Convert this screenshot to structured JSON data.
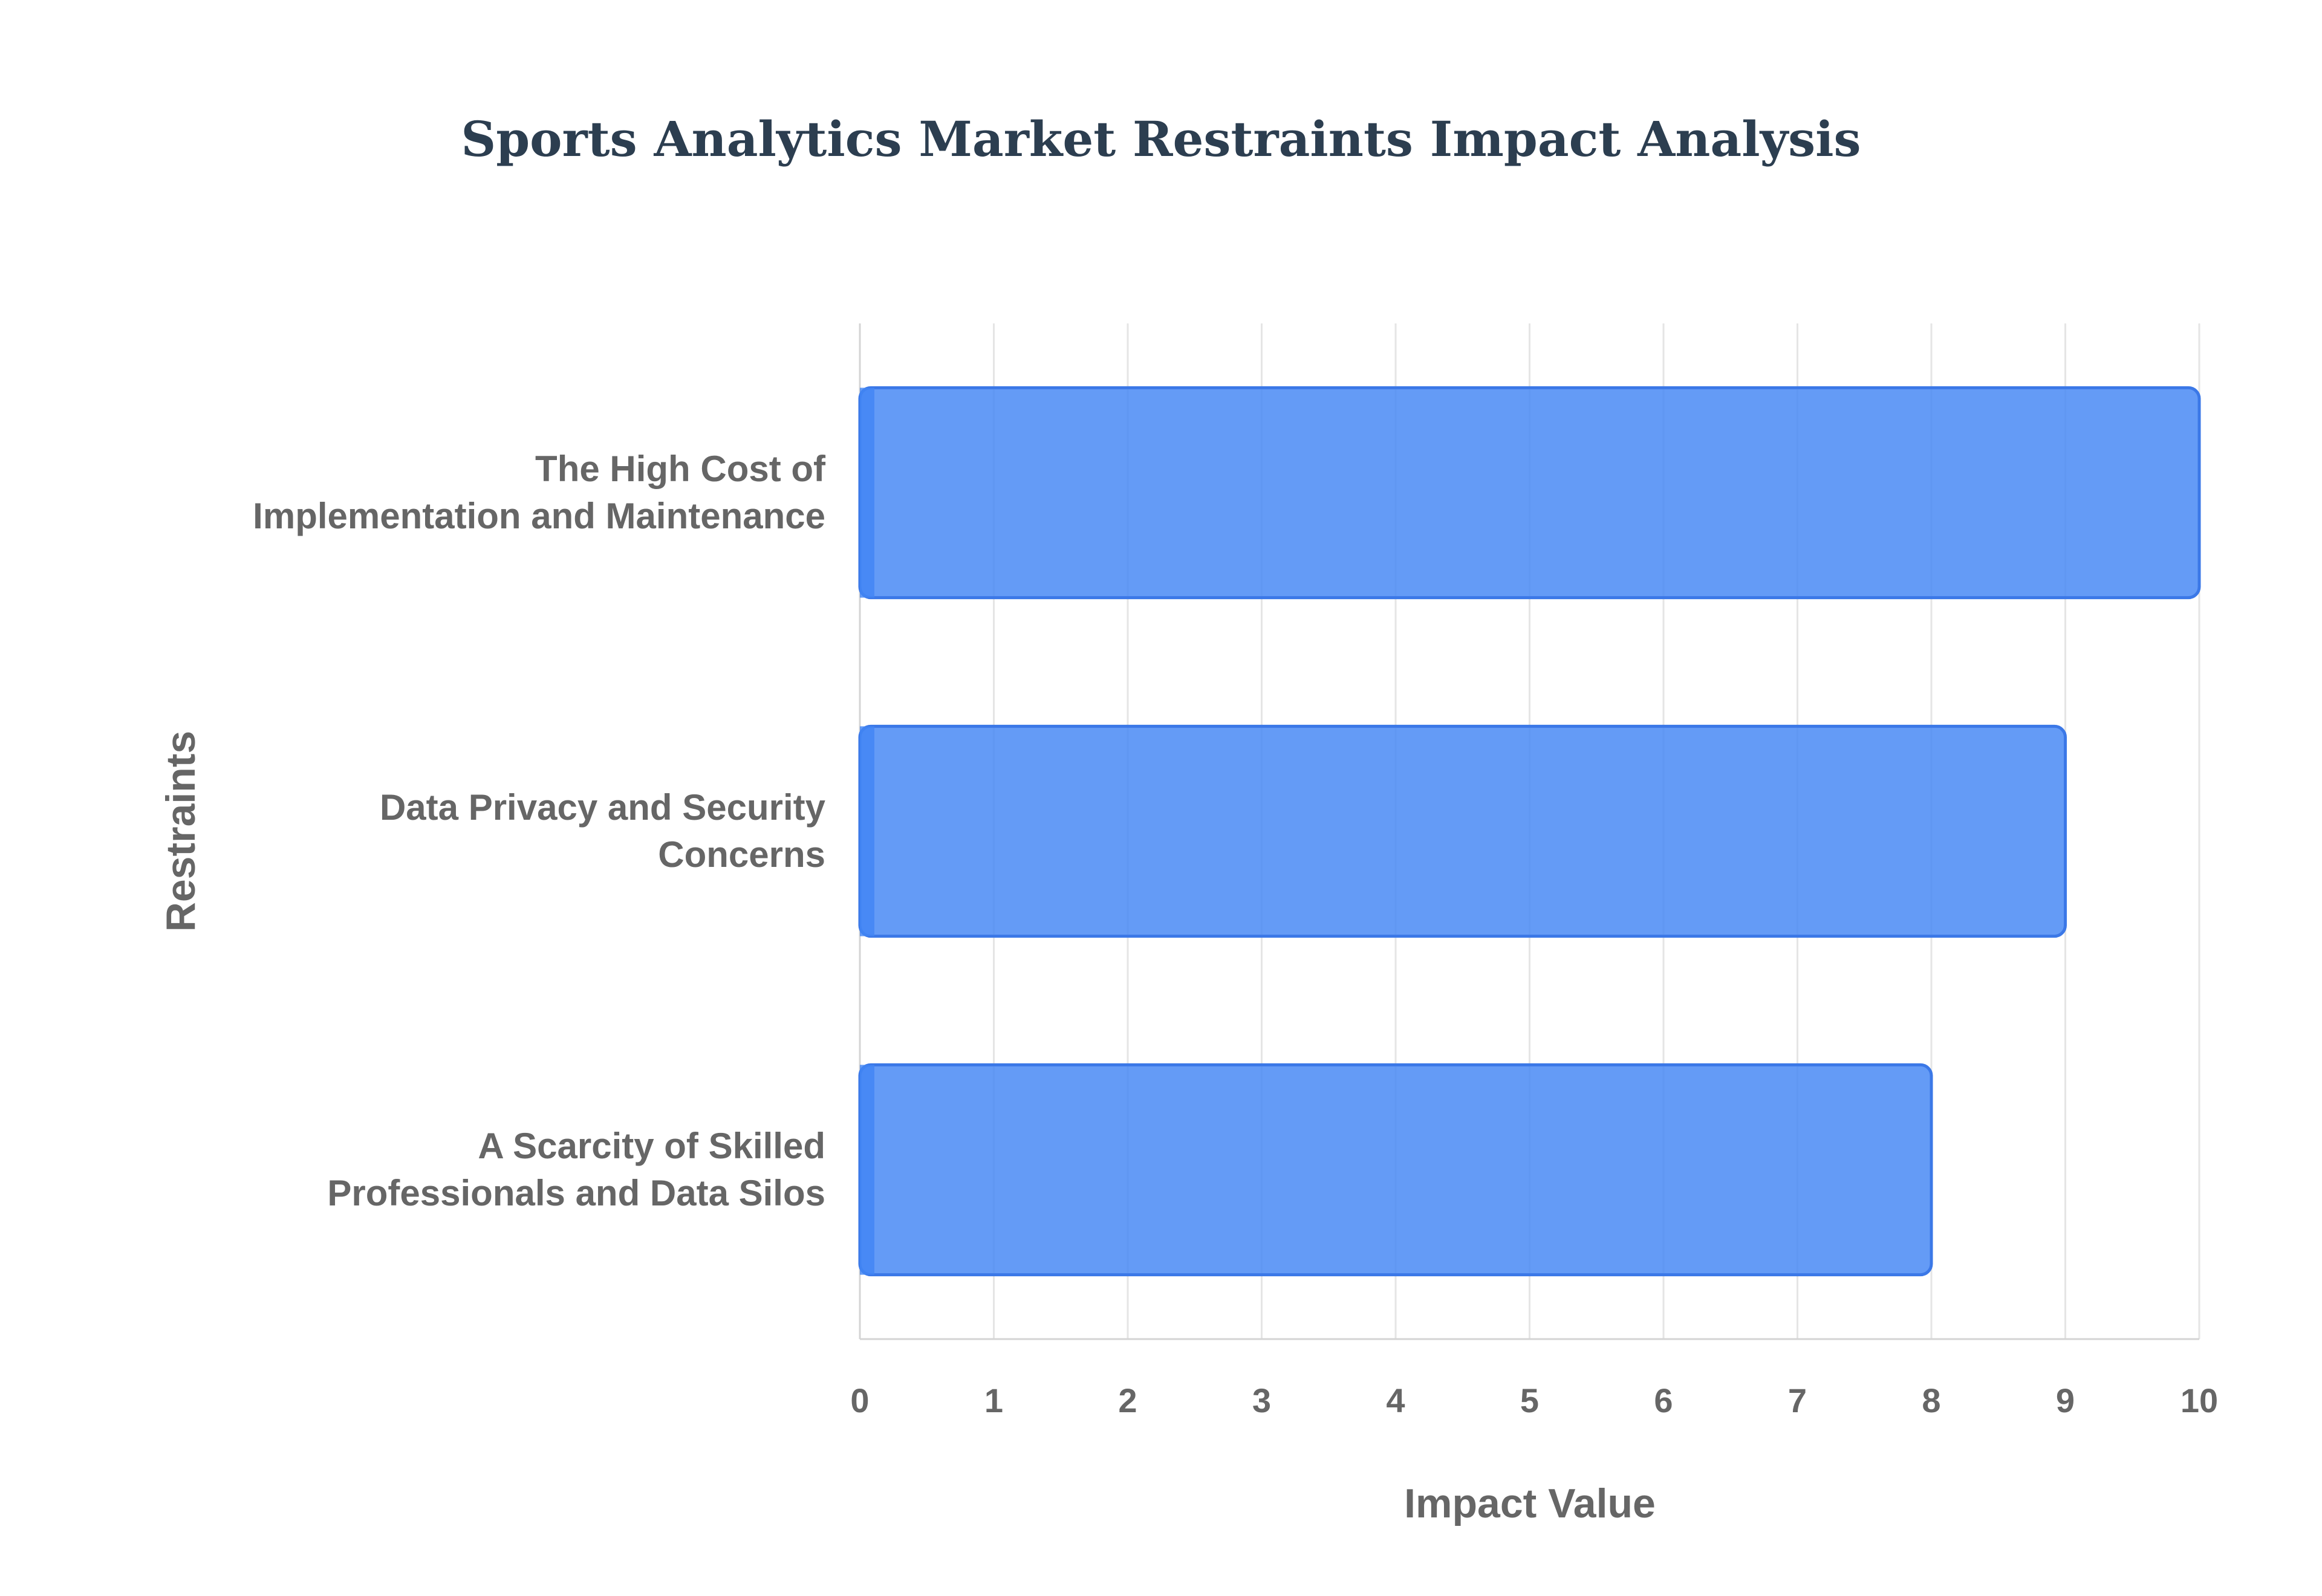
{
  "chart_data": {
    "type": "bar",
    "orientation": "horizontal",
    "title": "Sports Analytics Market Restraints Impact Analysis",
    "xlabel": "Impact Value",
    "ylabel": "Restraints",
    "categories": [
      [
        "The High Cost of",
        "Implementation and Maintenance"
      ],
      [
        "Data Privacy and Security",
        "Concerns"
      ],
      [
        "A Scarcity of Skilled",
        "Professionals and Data Silos"
      ]
    ],
    "values": [
      10,
      9,
      8
    ],
    "xlim": [
      0,
      10
    ],
    "xticks": [
      "0",
      "1",
      "2",
      "3",
      "4",
      "5",
      "6",
      "7",
      "8",
      "9",
      "10"
    ],
    "grid": true,
    "legend": "none",
    "colors": {
      "bar_fill": "#4285f4",
      "bar_stroke": "#3b78e7",
      "text": "#666666",
      "title": "#2c3e50"
    }
  }
}
